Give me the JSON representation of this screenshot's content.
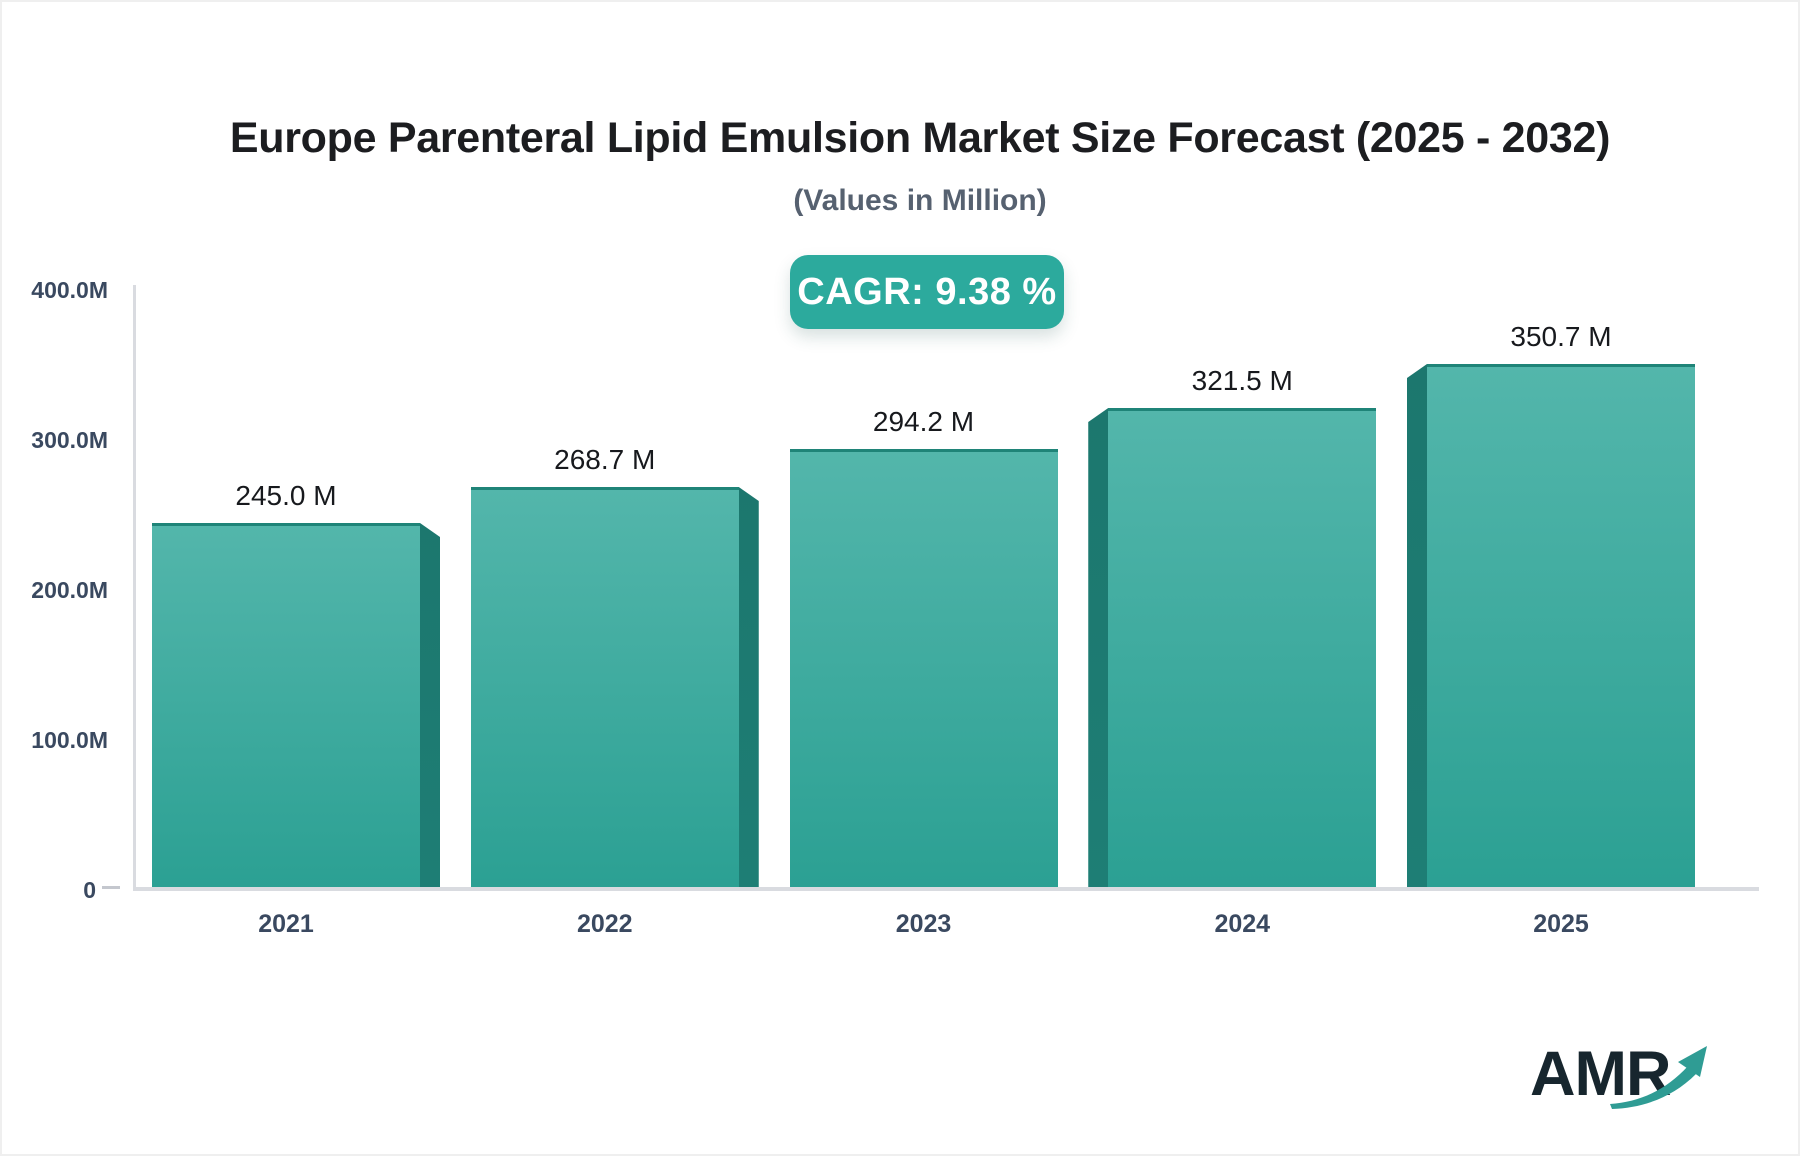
{
  "title": "Europe Parenteral Lipid Emulsion Market Size Forecast (2025 - 2032)",
  "subtitle": "(Values in Million)",
  "cagr_badge": "CAGR: 9.38 %",
  "chart_data": {
    "type": "bar",
    "categories": [
      "2021",
      "2022",
      "2023",
      "2024",
      "2025"
    ],
    "values": [
      245.0,
      268.7,
      294.2,
      321.5,
      350.7
    ],
    "value_labels": [
      "245.0 M",
      "268.7 M",
      "294.2 M",
      "321.5 M",
      "350.7 M"
    ],
    "unit": "Million",
    "ylim": [
      0,
      400
    ],
    "ytick_labels": [
      "400.0M",
      "300.0M",
      "200.0M",
      "100.0M",
      "0"
    ],
    "grid": false,
    "legend": "none",
    "style": "3d-extruded-bars",
    "colors": {
      "bar_top": "#53b6ab",
      "bar_bottom": "#2ba093",
      "bar_side": "#1e7e75",
      "bar_edge": "#1f8478",
      "axis_line": "#d9dbe0",
      "tick_dash": "#c4c7ce",
      "tick_text": "#3a4960",
      "value_text": "#17191d",
      "badge_bg": "#2caa9d",
      "badge_text": "#ffffff",
      "title": "#1c1d20",
      "subtitle": "#566170",
      "logo_text": "#17262e",
      "logo_arrow": "#2f9c94"
    }
  },
  "logo": {
    "text": "AMR"
  }
}
